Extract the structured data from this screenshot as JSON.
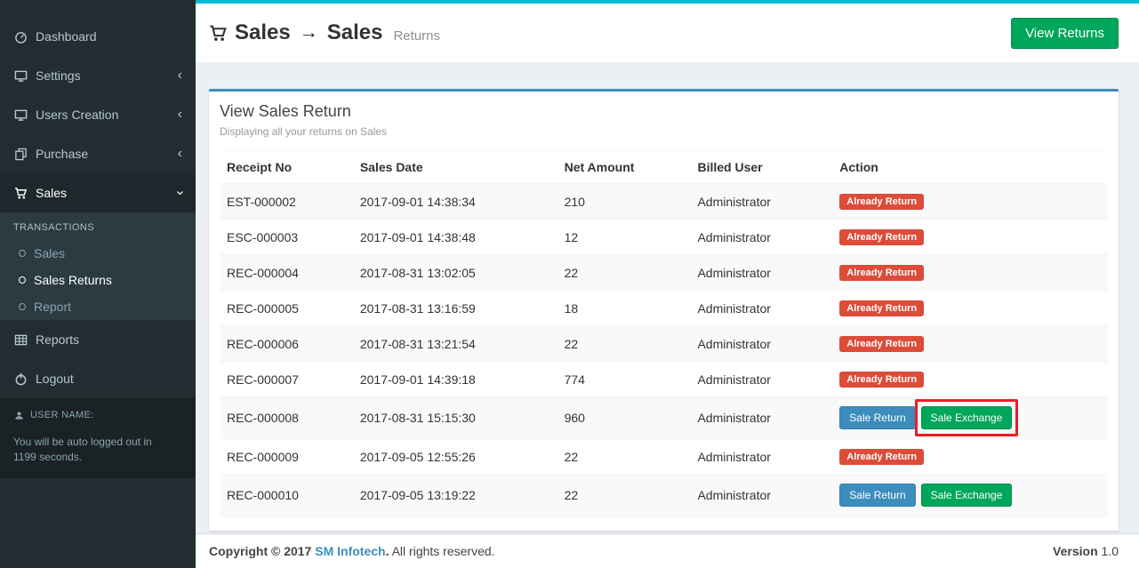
{
  "colors": {
    "accent_teal": "#00bcd4",
    "panel_border_blue": "#3c8dbc",
    "button_green": "#00a65a",
    "badge_red": "#dd4b39",
    "button_blue": "#3c8dbc",
    "annotation_red": "#ed1c24",
    "sidebar_dark": "#222d32"
  },
  "sidebar": {
    "items": [
      {
        "label": "Dashboard",
        "icon": "dashboard-icon"
      },
      {
        "label": "Settings",
        "icon": "desktop-icon",
        "chevron": "left"
      },
      {
        "label": "Users Creation",
        "icon": "desktop-icon",
        "chevron": "left"
      },
      {
        "label": "Purchase",
        "icon": "copy-icon",
        "chevron": "left"
      },
      {
        "label": "Sales",
        "icon": "cart-icon",
        "chevron": "down",
        "active": true
      }
    ],
    "section_label": "TRANSACTIONS",
    "submenu": [
      {
        "label": "Sales"
      },
      {
        "label": "Sales Returns",
        "active": true
      },
      {
        "label": "Report"
      }
    ],
    "reports": {
      "label": "Reports",
      "icon": "table-icon"
    },
    "logout": {
      "label": "Logout",
      "icon": "power-icon"
    },
    "user_label": "USER NAME:",
    "auto_logout_notice": "You will be auto logged out in 1199 seconds."
  },
  "header": {
    "title_main": "Sales",
    "arrow_icon": "→",
    "title_section": "Sales",
    "title_sub": "Returns",
    "view_returns_button": "View Returns"
  },
  "panel": {
    "title": "View Sales Return",
    "subtitle": "Displaying all your returns on Sales"
  },
  "table": {
    "columns": [
      "Receipt No",
      "Sales Date",
      "Net Amount",
      "Billed User",
      "Action"
    ],
    "action_labels": {
      "already_return": "Already Return",
      "sale_return": "Sale Return",
      "sale_exchange": "Sale Exchange"
    },
    "rows": [
      {
        "receipt_no": "EST-000002",
        "sales_date": "2017-09-01 14:38:34",
        "net_amount": "210",
        "billed_user": "Administrator",
        "actions": [
          "already_return"
        ]
      },
      {
        "receipt_no": "ESC-000003",
        "sales_date": "2017-09-01 14:38:48",
        "net_amount": "12",
        "billed_user": "Administrator",
        "actions": [
          "already_return"
        ]
      },
      {
        "receipt_no": "REC-000004",
        "sales_date": "2017-08-31 13:02:05",
        "net_amount": "22",
        "billed_user": "Administrator",
        "actions": [
          "already_return"
        ]
      },
      {
        "receipt_no": "REC-000005",
        "sales_date": "2017-08-31 13:16:59",
        "net_amount": "18",
        "billed_user": "Administrator",
        "actions": [
          "already_return"
        ]
      },
      {
        "receipt_no": "REC-000006",
        "sales_date": "2017-08-31 13:21:54",
        "net_amount": "22",
        "billed_user": "Administrator",
        "actions": [
          "already_return"
        ]
      },
      {
        "receipt_no": "REC-000007",
        "sales_date": "2017-09-01 14:39:18",
        "net_amount": "774",
        "billed_user": "Administrator",
        "actions": [
          "already_return"
        ]
      },
      {
        "receipt_no": "REC-000008",
        "sales_date": "2017-08-31 15:15:30",
        "net_amount": "960",
        "billed_user": "Administrator",
        "actions": [
          "sale_return",
          "sale_exchange"
        ],
        "highlighted_action": "sale_exchange"
      },
      {
        "receipt_no": "REC-000009",
        "sales_date": "2017-09-05 12:55:26",
        "net_amount": "22",
        "billed_user": "Administrator",
        "actions": [
          "already_return"
        ]
      },
      {
        "receipt_no": "REC-000010",
        "sales_date": "2017-09-05 13:19:22",
        "net_amount": "22",
        "billed_user": "Administrator",
        "actions": [
          "sale_return",
          "sale_exchange"
        ]
      }
    ]
  },
  "footer": {
    "copyright_prefix": "Copyright © 2017",
    "company": "SM Infotech",
    "copyright_dot": ".",
    "rights_text": "All rights reserved.",
    "version_label": "Version",
    "version_number": "1.0"
  }
}
